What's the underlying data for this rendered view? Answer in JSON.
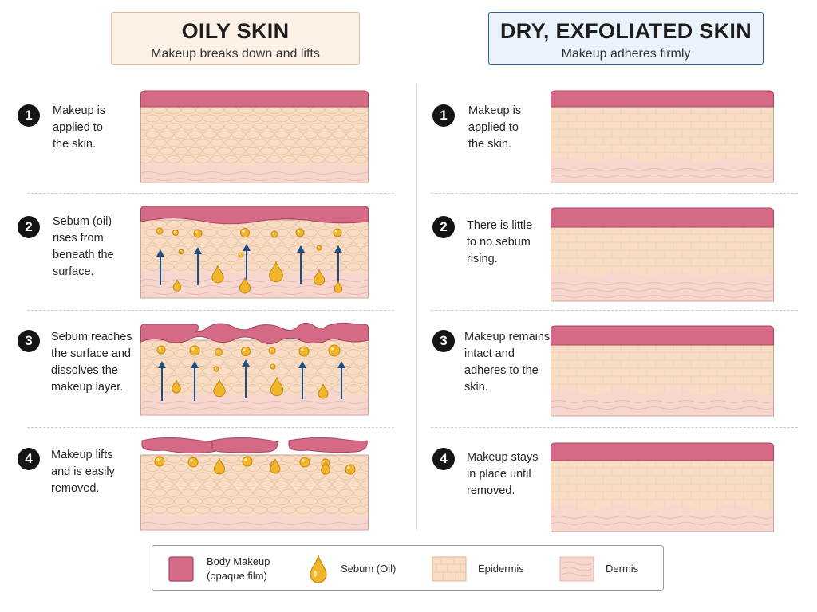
{
  "colors": {
    "makeup": "#d56a86",
    "makeup_stroke": "#a94560",
    "sebum": "#f0b52a",
    "sebum_stroke": "#c8870e",
    "epidermis": "#f8dcc3",
    "dermis": "#f6d6cf",
    "arrow": "#1f4e82",
    "oily_header_bg": "#fdf0e4",
    "dry_header_bg": "#eaf2fb"
  },
  "oily": {
    "title": "OILY SKIN",
    "subtitle": "Makeup breaks down and lifts",
    "steps": [
      {
        "number": "1",
        "text": "Makeup is\napplied to\nthe skin."
      },
      {
        "number": "2",
        "text": "Sebum (oil)\nrises from\nbeneath the\nsurface."
      },
      {
        "number": "3",
        "text": "Sebum reaches\nthe surface and\ndissolves the\nmakeup layer."
      },
      {
        "number": "4",
        "text": "Makeup lifts\nand is easily\nremoved."
      }
    ]
  },
  "dry": {
    "title": "DRY, EXFOLIATED SKIN",
    "subtitle": "Makeup adheres firmly",
    "steps": [
      {
        "number": "1",
        "text": "Makeup is\napplied to\nthe skin."
      },
      {
        "number": "2",
        "text": "There is little\nto no sebum\nrising."
      },
      {
        "number": "3",
        "text": "Makeup remains\nintact and\nadheres to the\nskin."
      },
      {
        "number": "4",
        "text": "Makeup stays\nin place until\nremoved."
      }
    ]
  },
  "legend": {
    "makeup": "Body Makeup\n(opaque film)",
    "sebum": "Sebum (Oil)",
    "epidermis": "Epidermis",
    "dermis": "Dermis"
  }
}
